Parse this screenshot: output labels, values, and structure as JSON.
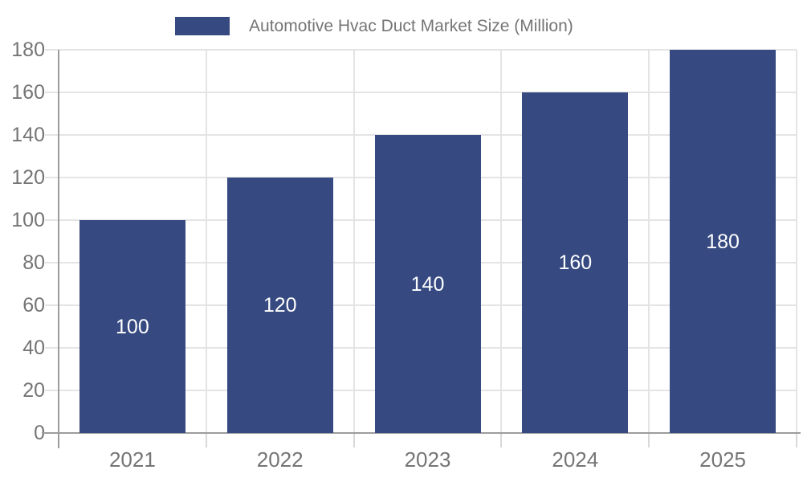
{
  "chart_data": {
    "type": "bar",
    "title": "Automotive Hvac Duct Market Size (Million)",
    "legend": [
      {
        "label": "Automotive Hvac Duct Market Size (Million)"
      }
    ],
    "legend_position": "top-center",
    "categories": [
      "2021",
      "2022",
      "2023",
      "2024",
      "2025"
    ],
    "series": [
      {
        "name": "Automotive Hvac Duct Market Size (Million)",
        "values": [
          100,
          120,
          140,
          160,
          180
        ],
        "value_labels": [
          "100",
          "120",
          "140",
          "160",
          "180"
        ]
      }
    ],
    "xlabel": "",
    "ylabel": "",
    "ylim": [
      0,
      180
    ],
    "ytick_step": 20,
    "yticks": [
      0,
      20,
      40,
      60,
      80,
      100,
      120,
      140,
      160,
      180
    ],
    "grid": true,
    "grid_vertical": true,
    "value_label_position": "inside-center",
    "colors": {
      "bar": "#364a81",
      "value_label": "#ffffff",
      "axis_label": "#757575",
      "legend_label": "#757575",
      "axis_line": "#9c9c9c",
      "gridline": "#e4e4e4",
      "boundary_tick": "#d9d9d9",
      "background": "#ffffff"
    }
  }
}
